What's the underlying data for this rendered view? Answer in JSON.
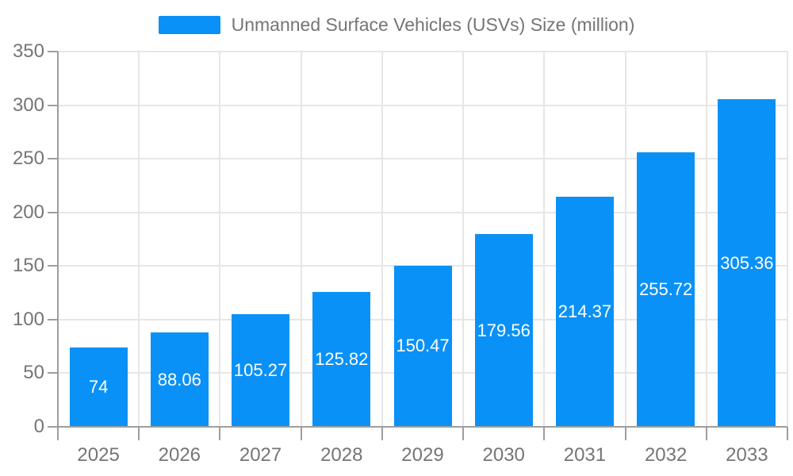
{
  "chart_data": {
    "type": "bar",
    "title": "",
    "legend": {
      "label": "Unmanned Surface Vehicles (USVs) Size (million)",
      "position": "top-center"
    },
    "categories": [
      "2025",
      "2026",
      "2027",
      "2028",
      "2029",
      "2030",
      "2031",
      "2032",
      "2033"
    ],
    "series": [
      {
        "name": "Unmanned Surface Vehicles (USVs) Size (million)",
        "values": [
          74,
          88.06,
          105.27,
          125.82,
          150.47,
          179.56,
          214.37,
          255.72,
          305.36
        ],
        "value_labels": [
          "74",
          "88.06",
          "105.27",
          "125.82",
          "150.47",
          "179.56",
          "214.37",
          "255.72",
          "305.36"
        ]
      }
    ],
    "xlabel": "",
    "ylabel": "",
    "ylim": [
      0,
      350
    ],
    "yticks": [
      0,
      50,
      100,
      150,
      200,
      250,
      300,
      350
    ],
    "grid": true,
    "colors": {
      "bar": "#0a91f7",
      "axis": "#9e9e9e",
      "grid": "#e6e6e6",
      "text": "#757575",
      "value_text": "#ffffff"
    }
  }
}
